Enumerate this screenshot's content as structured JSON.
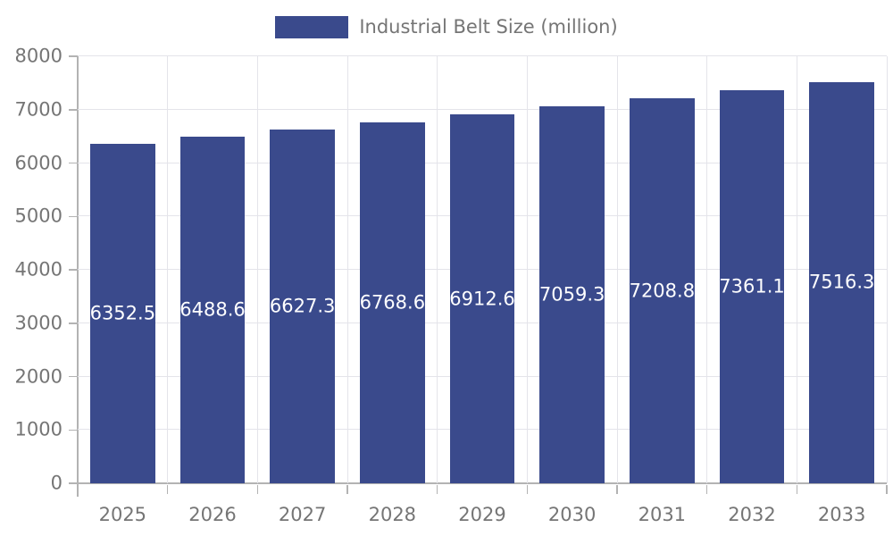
{
  "chart_data": {
    "type": "bar",
    "title": "Industrial Belt Size (million)",
    "series_name": "Industrial Belt Size (million)",
    "categories": [
      "2025",
      "2026",
      "2027",
      "2028",
      "2029",
      "2030",
      "2031",
      "2032",
      "2033"
    ],
    "values": [
      6352.5,
      6488.6,
      6627.3,
      6768.6,
      6912.6,
      7059.3,
      7208.8,
      7361.1,
      7516.3
    ],
    "xlabel": "",
    "ylabel": "",
    "ylim": [
      0,
      8000
    ],
    "y_ticks": [
      0,
      1000,
      2000,
      3000,
      4000,
      5000,
      6000,
      7000,
      8000
    ],
    "grid": true,
    "legend_position": "top-center",
    "value_labels_position": "inside-center",
    "colors": {
      "bar": "#3A4A8C",
      "value_label": "#ffffff",
      "grid": "#e4e4ea",
      "axis": "#b3b3b3",
      "tick_label": "#757575",
      "legend_text": "#757575",
      "background": "#ffffff"
    }
  }
}
